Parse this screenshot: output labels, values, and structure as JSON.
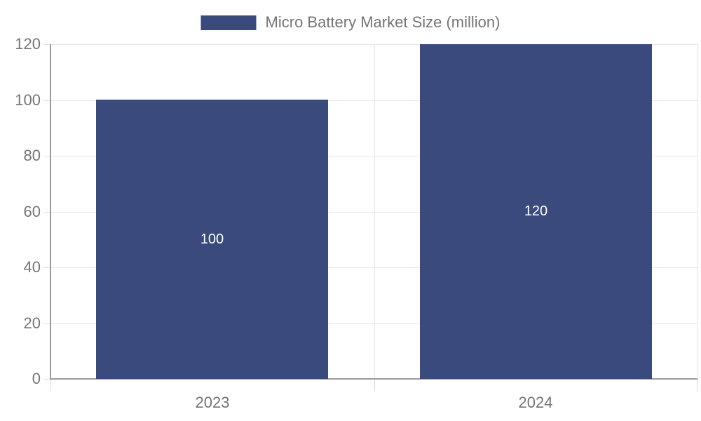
{
  "chart_data": {
    "type": "bar",
    "title": "",
    "legend": {
      "label": "Micro Battery Market Size (million)",
      "position": "top"
    },
    "categories": [
      "2023",
      "2024"
    ],
    "series": [
      {
        "name": "Micro Battery Market Size (million)",
        "values": [
          100,
          120
        ]
      }
    ],
    "value_labels": [
      "100",
      "120"
    ],
    "xlabel": "",
    "ylabel": "",
    "ylim": [
      0,
      120
    ],
    "yticks": [
      0,
      20,
      40,
      60,
      80,
      100,
      120
    ],
    "grid": true,
    "colors": {
      "bar": "#3a4a7d",
      "grid": "#e6e6e6",
      "axis": "#9a9a9a",
      "tick_text": "#757575",
      "value_label": "#ffffff",
      "background": "#ffffff"
    }
  }
}
